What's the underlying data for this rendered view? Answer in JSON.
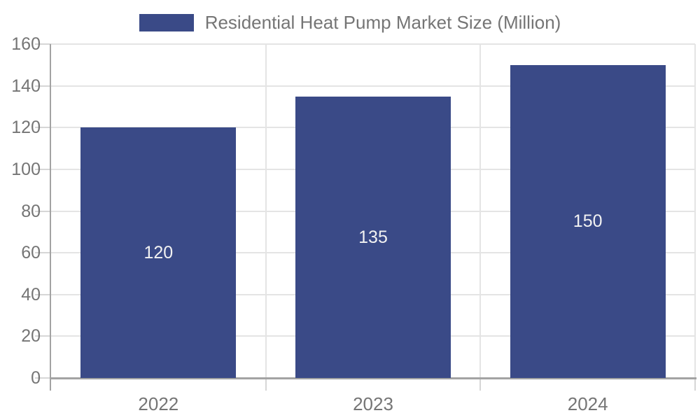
{
  "chart_data": {
    "type": "bar",
    "title": "Residential Heat Pump Market Size (Million)",
    "categories": [
      "2022",
      "2023",
      "2024"
    ],
    "series": [
      {
        "name": "Residential Heat Pump Market Size (Million)",
        "values": [
          120,
          135,
          150
        ]
      }
    ],
    "data_labels": [
      "120",
      "135",
      "150"
    ],
    "xlabel": "",
    "ylabel": "",
    "ylim": [
      0,
      160
    ],
    "ytick_step": 20,
    "ytick_labels": [
      "0",
      "20",
      "40",
      "60",
      "80",
      "100",
      "120",
      "140",
      "160"
    ],
    "grid": "on",
    "legend_position": "top-center",
    "colors": {
      "bar": "#3A4A87",
      "data_label": "#F2F2F2",
      "axis_line": "#A3A3A3",
      "grid_line": "#E4E4E4",
      "tick_line": "#D6D6D6",
      "text": "#757575",
      "background": "#FFFFFF"
    }
  }
}
